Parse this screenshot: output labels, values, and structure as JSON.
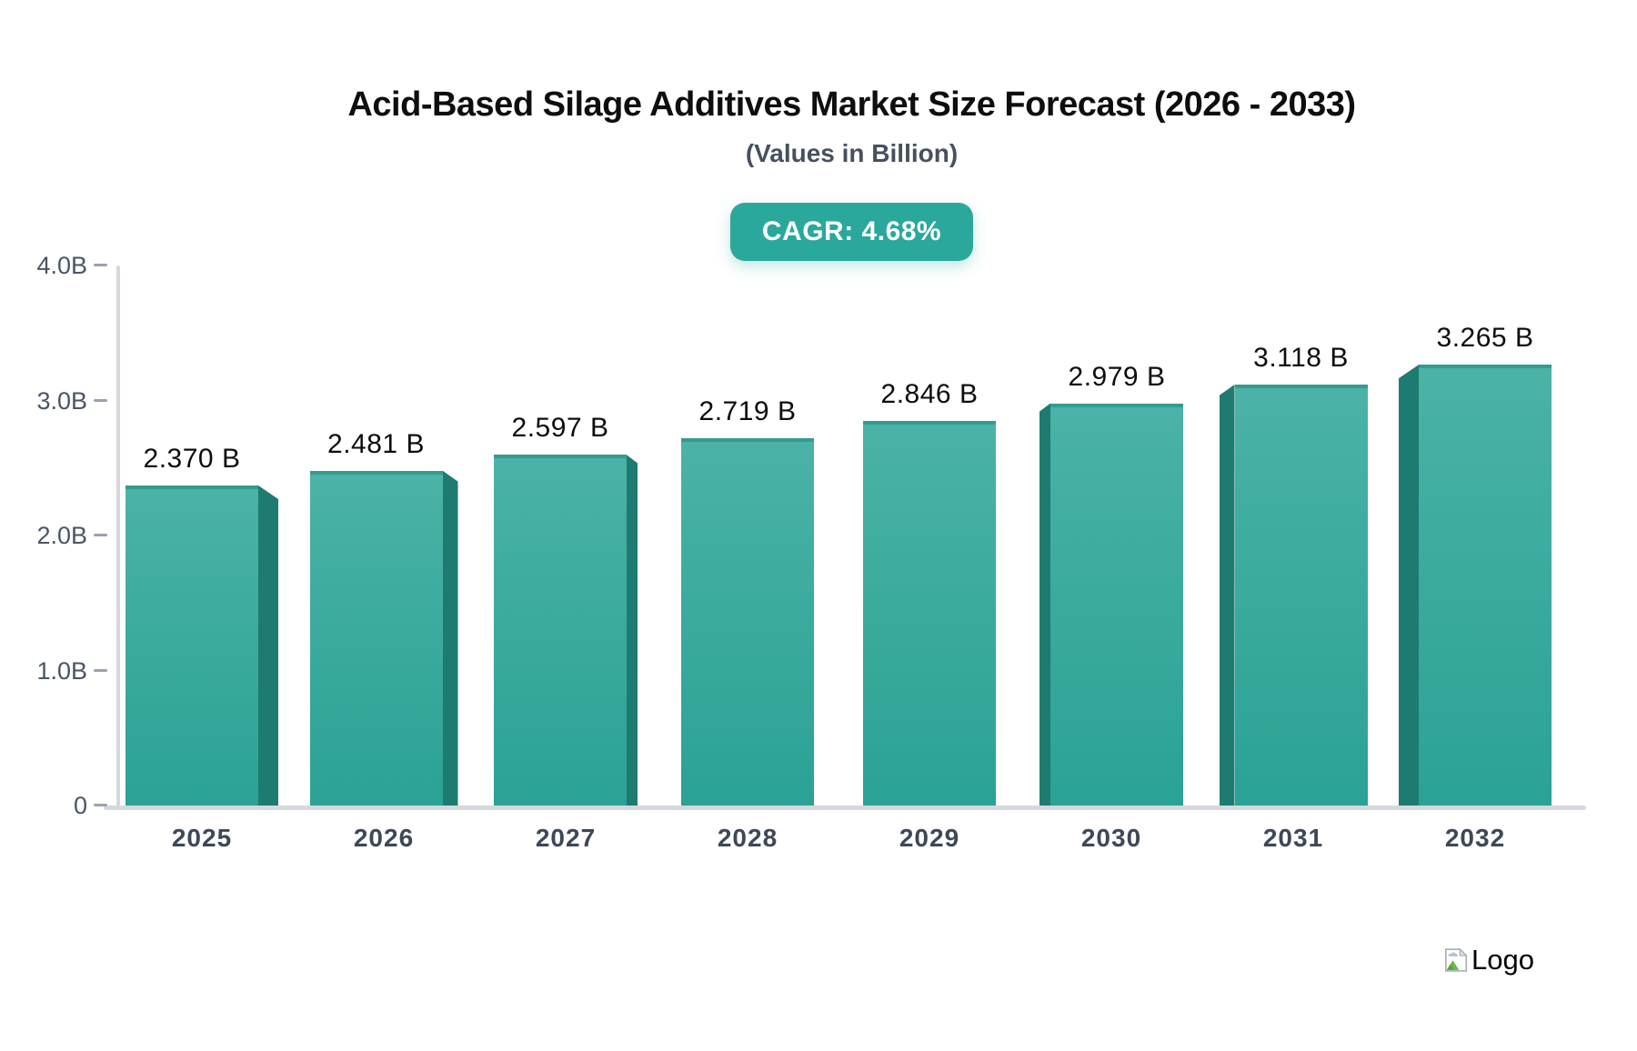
{
  "page": {
    "title": "Acid-Based Silage Additives Market Size Forecast (2026 - 2033)",
    "subtitle": "(Values in Billion)",
    "logo_text": "Logo"
  },
  "colors": {
    "accent_teal": "#2aa89c",
    "bar_front_top": "#4bb2a7",
    "bar_front_bottom": "#2aa295",
    "bar_side": "#1e7b6f",
    "bar_top_edge": "#339c90",
    "axis_line": "#d5d8dd",
    "tick_dash": "#9aa2ac",
    "y_label_color": "#4a5565",
    "x_label_color": "#3d4858",
    "value_label_color": "#0d0d0d"
  },
  "chart_data": {
    "type": "bar",
    "title": "Acid-Based Silage Additives Market Size Forecast (2026 - 2033)",
    "subtitle": "(Values in Billion)",
    "annotation": "CAGR: 4.68%",
    "categories": [
      "2025",
      "2026",
      "2027",
      "2028",
      "2029",
      "2030",
      "2031",
      "2032"
    ],
    "values": [
      2.37,
      2.481,
      2.597,
      2.719,
      2.846,
      2.979,
      3.118,
      3.265
    ],
    "value_labels": [
      "2.370 B",
      "2.481 B",
      "2.597 B",
      "2.719 B",
      "2.846 B",
      "2.979 B",
      "3.118 B",
      "3.265 B"
    ],
    "xlabel": "",
    "ylabel": "",
    "ylim": [
      0,
      4.0
    ],
    "y_ticks": [
      {
        "value": 0,
        "label": "0"
      },
      {
        "value": 1,
        "label": "1.0B"
      },
      {
        "value": 2,
        "label": "2.0B"
      },
      {
        "value": 3,
        "label": "3.0B"
      },
      {
        "value": 4,
        "label": "4.0B"
      }
    ],
    "grid": false,
    "legend": false,
    "bar_style": "3d-perspective-teal"
  }
}
